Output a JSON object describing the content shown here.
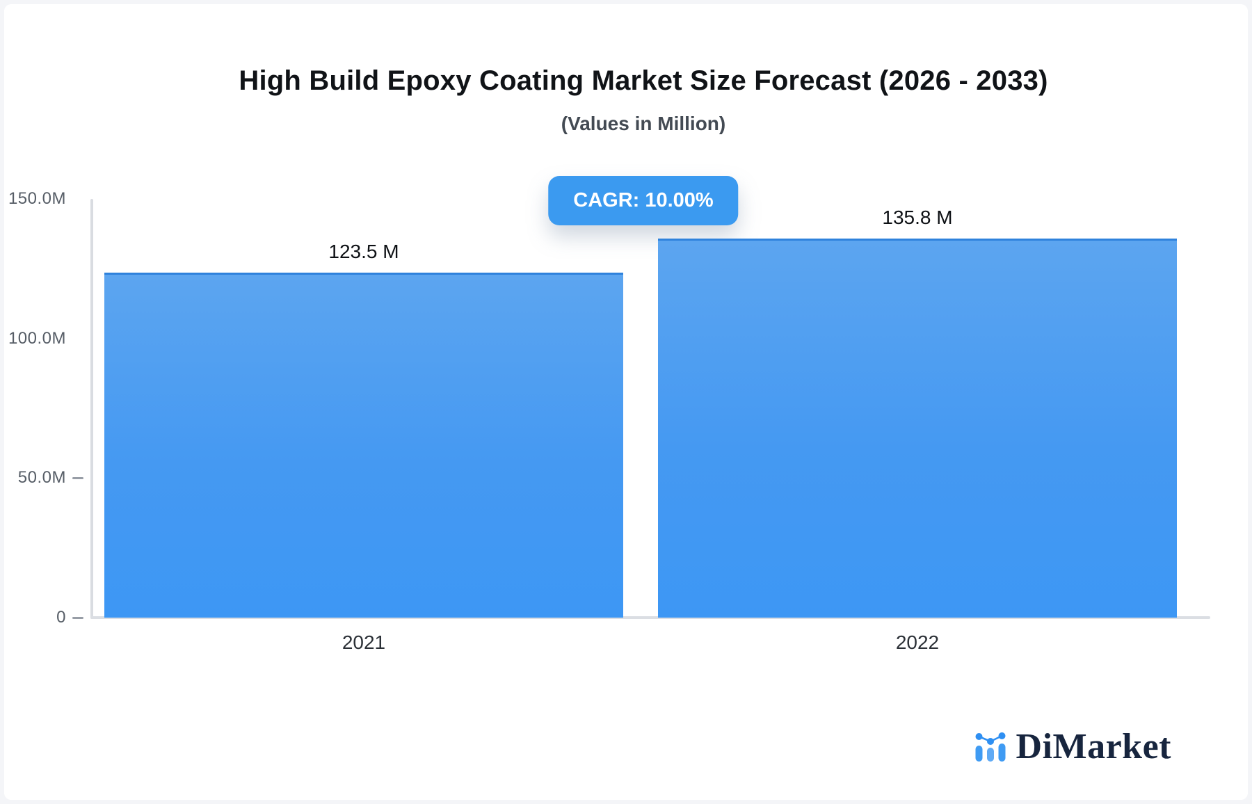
{
  "header": {
    "title": "High Build Epoxy Coating Market Size Forecast (2026 - 2033)",
    "subtitle": "(Values in Million)"
  },
  "badge": {
    "label": "CAGR: 10.00%",
    "color": "#3b9af0"
  },
  "chart_data": {
    "type": "bar",
    "title": "High Build Epoxy Coating Market Size Forecast (2026 - 2033)",
    "subtitle": "(Values in Million)",
    "unit": "Million",
    "cagr_percent": "10.00%",
    "categories": [
      "2021",
      "2022"
    ],
    "values": [
      123.5,
      135.8
    ],
    "value_labels": [
      "123.5 M",
      "135.8 M"
    ],
    "ylim": [
      0,
      150
    ],
    "y_ticks": [
      {
        "label": "150.0M",
        "value": 150,
        "tick_mark": false
      },
      {
        "label": "100.0M",
        "value": 100,
        "tick_mark": false
      },
      {
        "label": "50.0M",
        "value": 50,
        "tick_mark": true
      },
      {
        "label": "0",
        "value": 0,
        "tick_mark": true
      }
    ],
    "grid": false,
    "legend": false,
    "bar_color_top": "#5ca5f0",
    "bar_color_bottom": "#3d97f4",
    "bar_border_color": "#2f82dc",
    "axis_color": "#d9dce1"
  },
  "branding": {
    "name": "DiMarket",
    "icon": "bar-chart-logo-icon",
    "text_color": "#17253e",
    "icon_color": "#3f9bf3"
  }
}
